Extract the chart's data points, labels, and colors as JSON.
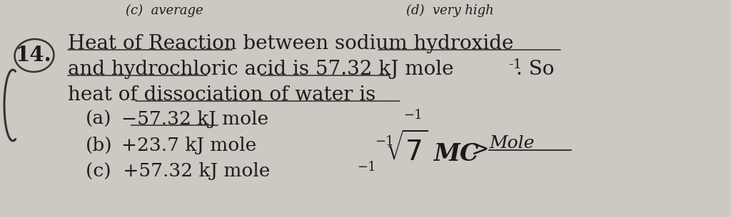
{
  "background_color": "#ccc8c2",
  "top_left_text": "(c)  average",
  "top_right_text": "(d)  very high",
  "question_number": "14.",
  "main_text_line1": "Heat of Reaction between sodium hydroxide",
  "main_text_line2": "and hydrochloric acid is 57.32 kJ mole",
  "main_text_line2_sup": "-1",
  "main_text_line2b": ". So",
  "main_text_line3": "heat of dissociation of water is",
  "option_a_label": "(a)",
  "option_a_val": "−57.32 kJ mole",
  "option_a_sup": "−1",
  "option_b_label": "(b)",
  "option_b_val": "+23.7 kJ mole",
  "option_b_sup": "−1",
  "option_c_partial": "(c)  +57.32 kJ mole",
  "option_c_sup": "−1",
  "font_size_top": 12,
  "font_size_main": 20,
  "font_size_options": 19,
  "text_color": "#1c1c1c",
  "dark_text": "#111111",
  "circle_color": "#333333",
  "underline_color": "#2a2a2a",
  "handwriting_color": "#1a1a1a"
}
